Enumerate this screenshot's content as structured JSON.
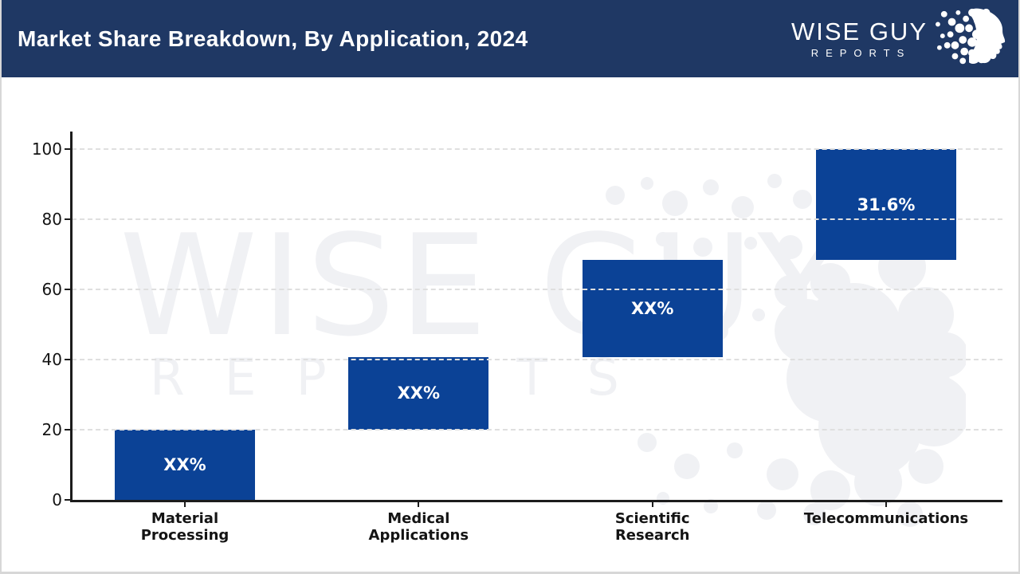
{
  "header": {
    "title": "Market Share Breakdown, By Application, 2024",
    "bg_color": "#1f3864",
    "logo_line1": "WISE GUY",
    "logo_line2": "REPORTS"
  },
  "watermark": {
    "line1": "WISE GUY",
    "line2": "REPORTS"
  },
  "chart_data": {
    "type": "bar",
    "variant": "waterfall",
    "title": "Market Share Breakdown, By Application, 2024",
    "categories": [
      "Material Processing",
      "Medical Applications",
      "Scientific Research",
      "Telecommunications"
    ],
    "segments": [
      {
        "category": "Material Processing",
        "start": 0,
        "end": 20,
        "value": 20,
        "label": "XX%"
      },
      {
        "category": "Medical Applications",
        "start": 20,
        "end": 40.7,
        "value": 20.7,
        "label": "XX%"
      },
      {
        "category": "Scientific Research",
        "start": 40.7,
        "end": 68.4,
        "value": 27.7,
        "label": "XX%"
      },
      {
        "category": "Telecommunications",
        "start": 68.4,
        "end": 100,
        "value": 31.6,
        "label": "31.6%"
      }
    ],
    "xlabel": "",
    "ylabel": "",
    "ylim": [
      0,
      100
    ],
    "yticks": [
      0,
      20,
      40,
      60,
      80,
      100
    ],
    "grid": "horizontal-dashed",
    "legend": "none",
    "bar_color": "#0b4296",
    "bar_label_color": "#ffffff",
    "axis_color": "#1c1c1c",
    "grid_color": "#dfdfdf"
  }
}
